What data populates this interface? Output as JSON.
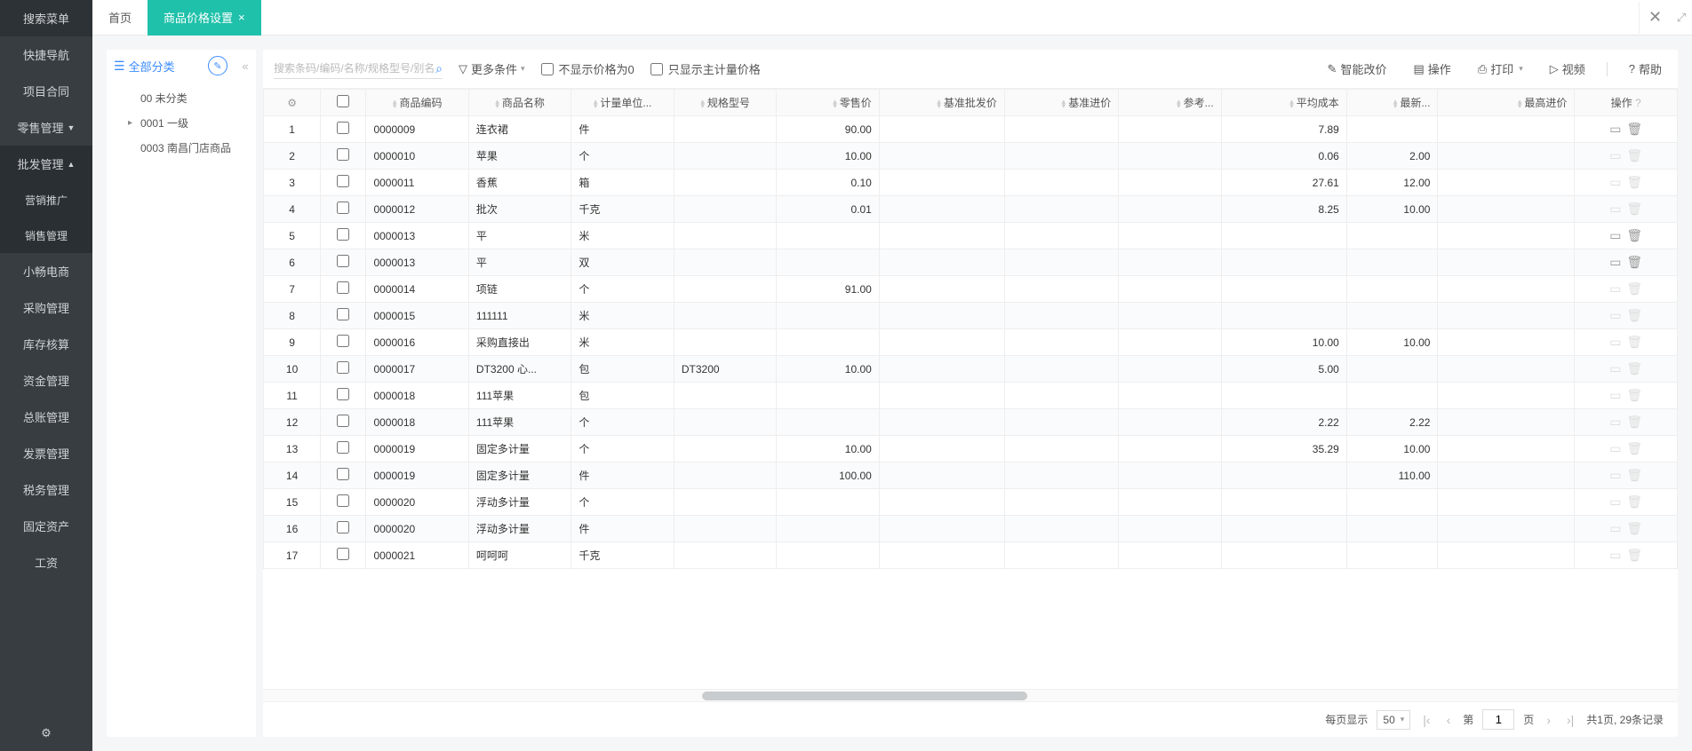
{
  "sidebar": {
    "items": [
      {
        "label": "搜索菜单"
      },
      {
        "label": "快捷导航"
      },
      {
        "label": "项目合同"
      },
      {
        "label": "零售管理",
        "caret": "▼"
      },
      {
        "label": "批发管理",
        "caret": "▲",
        "expanded": true,
        "children": [
          {
            "label": "营销推广"
          },
          {
            "label": "销售管理"
          }
        ]
      },
      {
        "label": "小畅电商"
      },
      {
        "label": "采购管理"
      },
      {
        "label": "库存核算"
      },
      {
        "label": "资金管理"
      },
      {
        "label": "总账管理"
      },
      {
        "label": "发票管理"
      },
      {
        "label": "税务管理"
      },
      {
        "label": "固定资产"
      },
      {
        "label": "工资"
      }
    ]
  },
  "tabs": {
    "items": [
      {
        "label": "首页",
        "active": false,
        "closable": false
      },
      {
        "label": "商品价格设置",
        "active": true,
        "closable": true
      }
    ]
  },
  "category": {
    "title": "全部分类",
    "nodes": [
      {
        "label": "00 未分类",
        "indent": 1
      },
      {
        "label": "0001 一级",
        "indent": 1,
        "caret": "▸"
      },
      {
        "label": "0003 南昌门店商品",
        "indent": 1
      }
    ]
  },
  "toolbar": {
    "search_placeholder": "搜索条码/编码/名称/规格型号/别名",
    "more_cond": "更多条件",
    "chk_hide_zero": "不显示价格为0",
    "chk_only_main": "只显示主计量价格",
    "smart_price": "智能改价",
    "operate": "操作",
    "print": "打印",
    "video": "视频",
    "help": "帮助"
  },
  "table": {
    "columns": {
      "code": "商品编码",
      "name": "商品名称",
      "unit": "计量单位...",
      "spec": "规格型号",
      "retail": "零售价",
      "wholesale": "基准批发价",
      "basein": "基准进价",
      "ref": "参考...",
      "avg": "平均成本",
      "latest": "最新...",
      "maxin": "最高进价",
      "op": "操作"
    },
    "rows": [
      {
        "idx": "1",
        "code": "0000009",
        "name": "连衣裙",
        "unit": "件",
        "spec": "",
        "retail": "90.00",
        "avg": "7.89",
        "latest": "",
        "op_enabled": true
      },
      {
        "idx": "2",
        "code": "0000010",
        "name": "苹果",
        "unit": "个",
        "spec": "",
        "retail": "10.00",
        "avg": "0.06",
        "latest": "2.00",
        "op_enabled": false
      },
      {
        "idx": "3",
        "code": "0000011",
        "name": "香蕉",
        "unit": "箱",
        "spec": "",
        "retail": "0.10",
        "avg": "27.61",
        "latest": "12.00",
        "op_enabled": false
      },
      {
        "idx": "4",
        "code": "0000012",
        "name": "批次",
        "unit": "千克",
        "spec": "",
        "retail": "0.01",
        "avg": "8.25",
        "latest": "10.00",
        "op_enabled": false
      },
      {
        "idx": "5",
        "code": "0000013",
        "name": "平",
        "unit": "米",
        "spec": "",
        "retail": "",
        "avg": "",
        "latest": "",
        "op_enabled": true
      },
      {
        "idx": "6",
        "code": "0000013",
        "name": "平",
        "unit": "双",
        "spec": "",
        "retail": "",
        "avg": "",
        "latest": "",
        "op_enabled": true
      },
      {
        "idx": "7",
        "code": "0000014",
        "name": "项链",
        "unit": "个",
        "spec": "",
        "retail": "91.00",
        "avg": "",
        "latest": "",
        "op_enabled": false
      },
      {
        "idx": "8",
        "code": "0000015",
        "name": "111111",
        "unit": "米",
        "spec": "",
        "retail": "",
        "avg": "",
        "latest": "",
        "op_enabled": false
      },
      {
        "idx": "9",
        "code": "0000016",
        "name": "采购直接出",
        "unit": "米",
        "spec": "",
        "retail": "",
        "avg": "10.00",
        "latest": "10.00",
        "op_enabled": false
      },
      {
        "idx": "10",
        "code": "0000017",
        "name": "DT3200 心...",
        "unit": "包",
        "spec": "DT3200",
        "retail": "10.00",
        "avg": "5.00",
        "latest": "",
        "op_enabled": false
      },
      {
        "idx": "11",
        "code": "0000018",
        "name": "111苹果",
        "unit": "包",
        "spec": "",
        "retail": "",
        "avg": "",
        "latest": "",
        "op_enabled": false
      },
      {
        "idx": "12",
        "code": "0000018",
        "name": "111苹果",
        "unit": "个",
        "spec": "",
        "retail": "",
        "avg": "2.22",
        "latest": "2.22",
        "op_enabled": false
      },
      {
        "idx": "13",
        "code": "0000019",
        "name": "固定多计量",
        "unit": "个",
        "spec": "",
        "retail": "10.00",
        "avg": "35.29",
        "latest": "10.00",
        "op_enabled": false
      },
      {
        "idx": "14",
        "code": "0000019",
        "name": "固定多计量",
        "unit": "件",
        "spec": "",
        "retail": "100.00",
        "avg": "",
        "latest": "110.00",
        "op_enabled": false
      },
      {
        "idx": "15",
        "code": "0000020",
        "name": "浮动多计量",
        "unit": "个",
        "spec": "",
        "retail": "",
        "avg": "",
        "latest": "",
        "op_enabled": false
      },
      {
        "idx": "16",
        "code": "0000020",
        "name": "浮动多计量",
        "unit": "件",
        "spec": "",
        "retail": "",
        "avg": "",
        "latest": "",
        "op_enabled": false
      },
      {
        "idx": "17",
        "code": "0000021",
        "name": "呵呵呵",
        "unit": "千克",
        "spec": "",
        "retail": "",
        "avg": "",
        "latest": "",
        "op_enabled": false
      }
    ]
  },
  "pager": {
    "per_page_label": "每页显示",
    "per_page_value": "50",
    "page_label_pre": "第",
    "page_value": "1",
    "page_label_post": "页",
    "summary": "共1页, 29条记录"
  },
  "hscroll": {
    "left_pct": 31,
    "width_pct": 23
  }
}
